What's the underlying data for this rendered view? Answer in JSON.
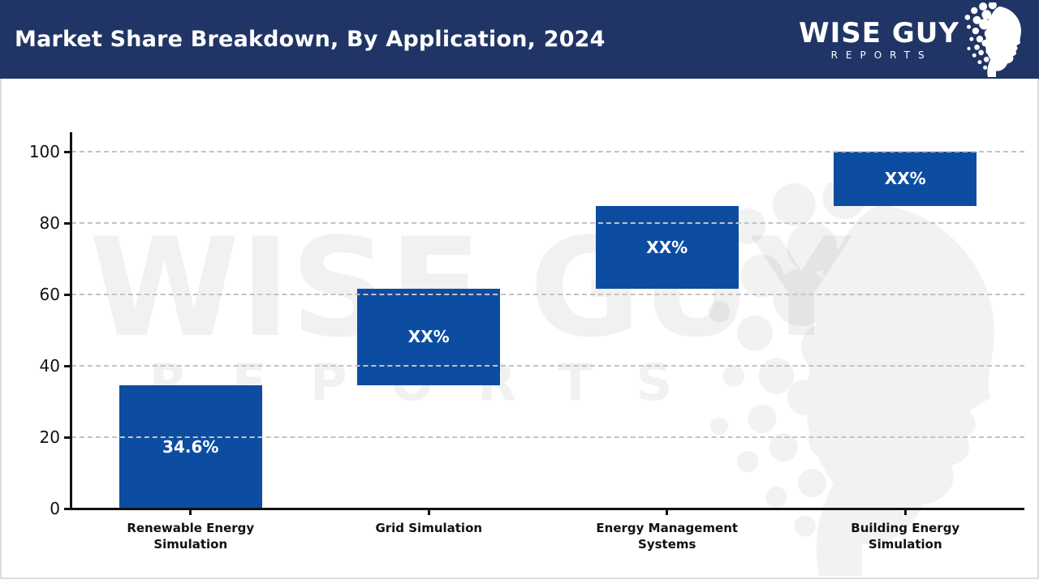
{
  "header": {
    "title": "Market Share Breakdown, By Application, 2024",
    "logo": {
      "line1": "WISE GUY",
      "line2": "REPORTS",
      "head_icon": "dotted-head-profile-icon"
    }
  },
  "watermark": {
    "line1": "WISE GUY",
    "line2": "REPORTS"
  },
  "chart_data": {
    "type": "bar",
    "subtype": "floating-waterfall",
    "title": "Market Share Breakdown, By Application, 2024",
    "categories": [
      "Renewable Energy Simulation",
      "Grid Simulation",
      "Energy Management Systems",
      "Building Energy Simulation"
    ],
    "bars": [
      {
        "category": "Renewable Energy Simulation",
        "label": "34.6%",
        "start": 0,
        "end": 34.6
      },
      {
        "category": "Grid Simulation",
        "label": "XX%",
        "start": 34.6,
        "end": 61.6
      },
      {
        "category": "Energy Management Systems",
        "label": "XX%",
        "start": 61.6,
        "end": 84.8
      },
      {
        "category": "Building Energy Simulation",
        "label": "XX%",
        "start": 84.8,
        "end": 100
      }
    ],
    "yticks": [
      0,
      20,
      40,
      60,
      80,
      100
    ],
    "ylim": [
      0,
      105
    ],
    "xlabel": "",
    "ylabel": "",
    "grid": true,
    "legend": false,
    "bar_color": "#0c4da2",
    "bar_label_color": "#ffffff",
    "colors": {
      "header_bg": "#203565",
      "axis": "#111111",
      "gridline": "#c3c3c3"
    }
  }
}
